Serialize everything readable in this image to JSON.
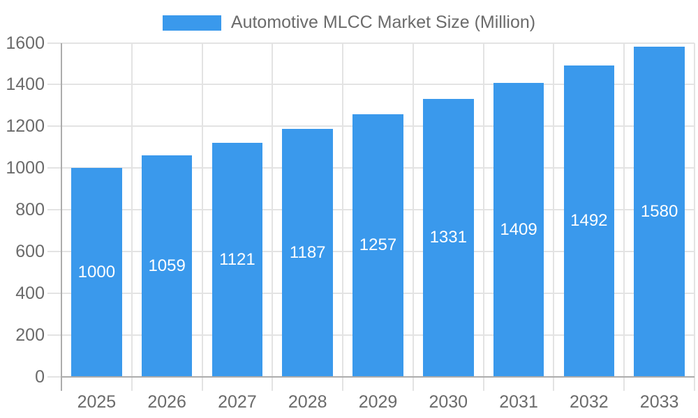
{
  "chart_data": {
    "type": "bar",
    "legend_label": "Automotive MLCC Market Size (Million)",
    "categories": [
      "2025",
      "2026",
      "2027",
      "2028",
      "2029",
      "2030",
      "2031",
      "2032",
      "2033"
    ],
    "values": [
      1000,
      1059,
      1121,
      1187,
      1257,
      1331,
      1409,
      1492,
      1580
    ],
    "value_labels": [
      "1000",
      "1059",
      "1121",
      "1187",
      "1257",
      "1331",
      "1409",
      "1492",
      "1580"
    ],
    "title": "",
    "xlabel": "",
    "ylabel": "",
    "ylim": [
      0,
      1600
    ],
    "ytick_step": 200,
    "ytick_labels": [
      "0",
      "200",
      "400",
      "600",
      "800",
      "1000",
      "1200",
      "1400",
      "1600"
    ],
    "grid": true,
    "legend_position": "top",
    "colors": {
      "bar": "#3A99EC",
      "value_label": "#FFFFFF",
      "grid_line": "#E3E3E3",
      "axis_line": "#ACACAC",
      "tick_text": "#6B6B6B",
      "background": "#FFFFFF"
    }
  }
}
